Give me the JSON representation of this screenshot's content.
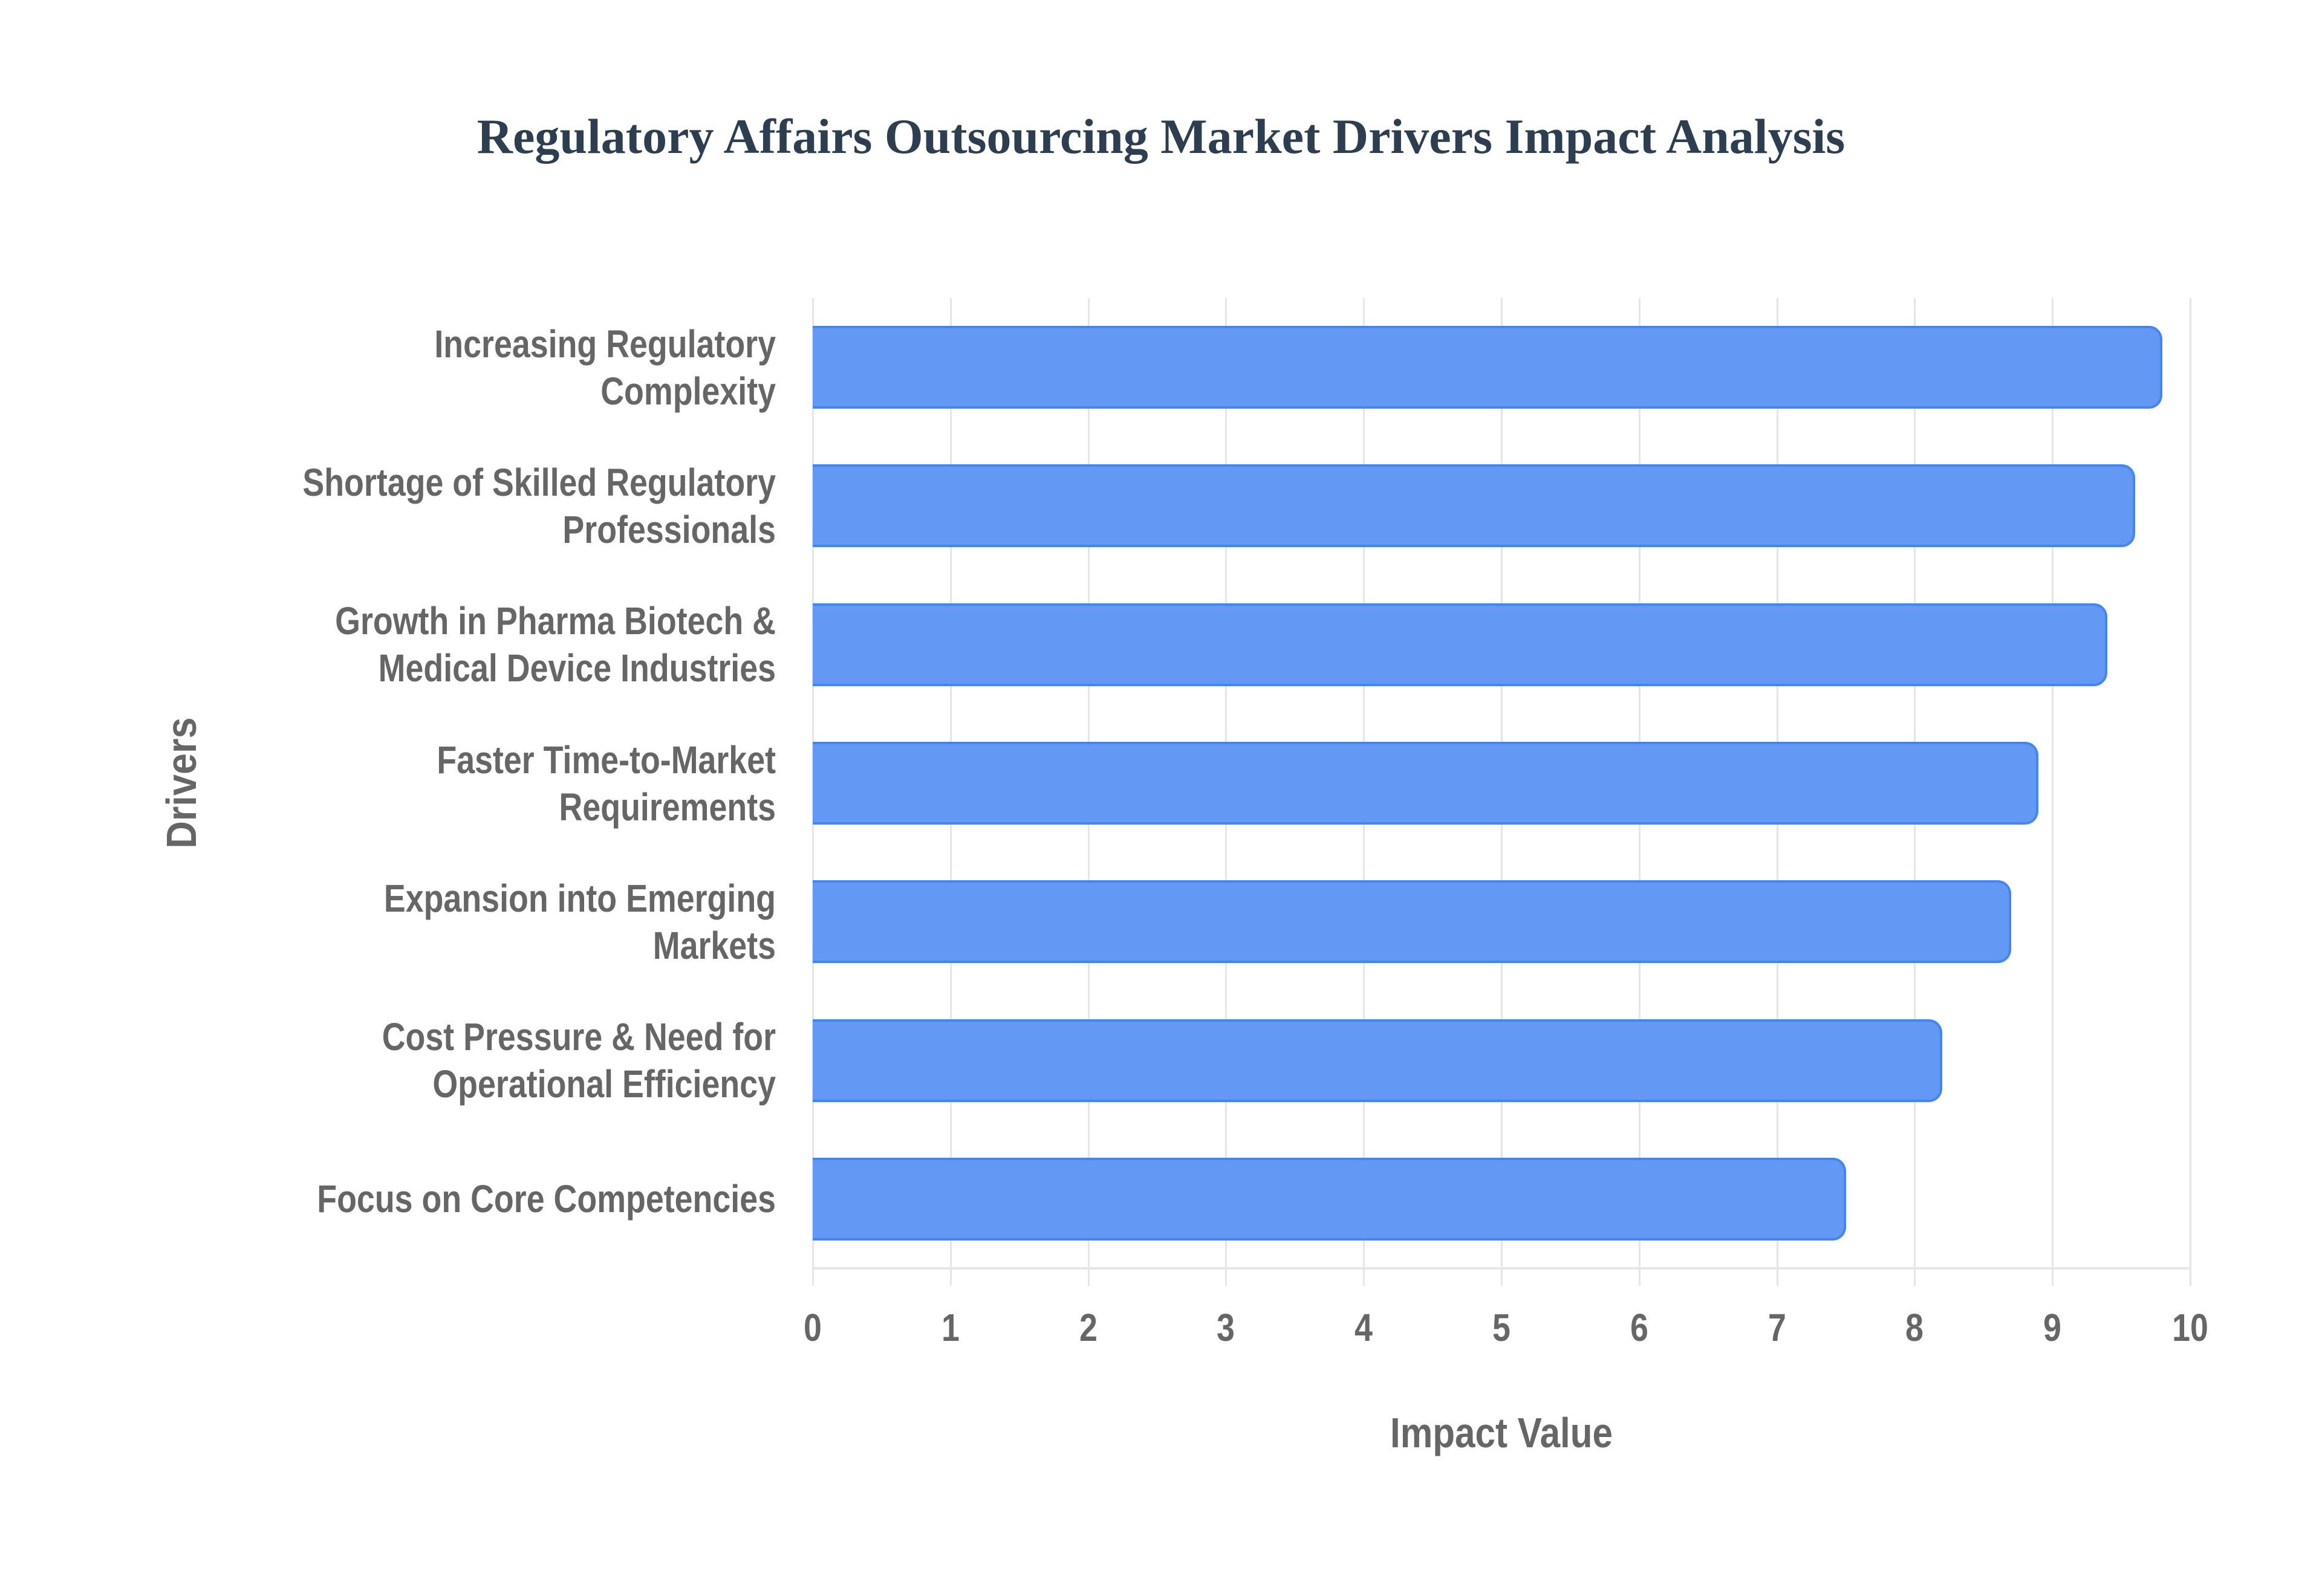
{
  "chart_data": {
    "type": "bar",
    "orientation": "horizontal",
    "title": "Regulatory Affairs Outsourcing Market Drivers Impact Analysis",
    "xlabel": "Impact Value",
    "ylabel": "Drivers",
    "xlim": [
      0,
      10
    ],
    "x_ticks": [
      "0",
      "1",
      "2",
      "3",
      "4",
      "5",
      "6",
      "7",
      "8",
      "9",
      "10"
    ],
    "grid": true,
    "legend": null,
    "categories": [
      "Increasing Regulatory Complexity",
      "Shortage of Skilled Regulatory Professionals",
      "Growth in Pharma Biotech & Medical Device Industries",
      "Faster Time-to-Market Requirements",
      "Expansion into Emerging Markets",
      "Cost Pressure & Need for Operational Efficiency",
      "Focus on Core Competencies"
    ],
    "category_lines": [
      [
        "Increasing Regulatory",
        "Complexity"
      ],
      [
        "Shortage of Skilled Regulatory",
        "Professionals"
      ],
      [
        "Growth in Pharma Biotech &",
        "Medical Device Industries"
      ],
      [
        "Faster Time-to-Market",
        "Requirements"
      ],
      [
        "Expansion into Emerging",
        "Markets"
      ],
      [
        "Cost Pressure & Need for",
        "Operational Efficiency"
      ],
      [
        "Focus on Core Competencies"
      ]
    ],
    "values": [
      9.8,
      9.6,
      9.4,
      8.9,
      8.7,
      8.2,
      7.5
    ],
    "colors": {
      "bar_fill": "#6398f5",
      "bar_border": "#4285f4",
      "title": "#2c3e50",
      "axis_text": "#666666",
      "grid": "#e6e6e6"
    }
  }
}
